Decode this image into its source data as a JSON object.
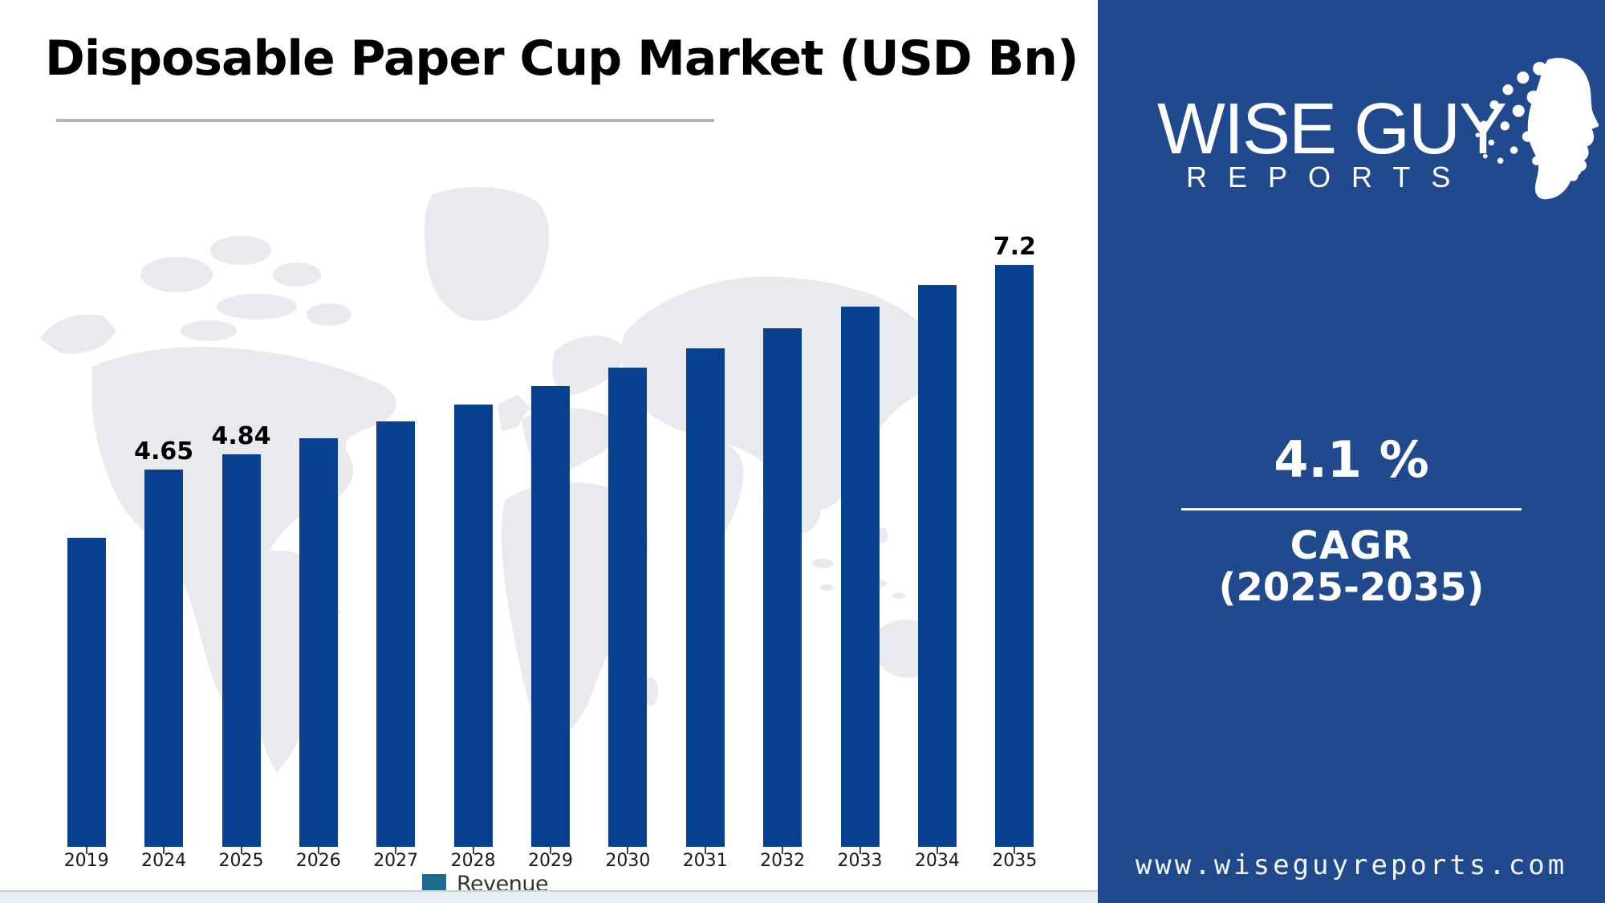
{
  "title": "Disposable Paper Cup Market (USD Bn)",
  "chart_data": {
    "type": "bar",
    "title": "Disposable Paper Cup Market (USD Bn)",
    "categories": [
      "2019",
      "2024",
      "2025",
      "2026",
      "2027",
      "2028",
      "2029",
      "2030",
      "2031",
      "2032",
      "2033",
      "2034",
      "2035"
    ],
    "series": [
      {
        "name": "Revenue",
        "values": [
          3.8,
          4.65,
          4.84,
          5.04,
          5.25,
          5.46,
          5.69,
          5.92,
          6.16,
          6.41,
          6.68,
          6.95,
          7.2
        ]
      }
    ],
    "value_labels": {
      "2024": "4.65",
      "2025": "4.84",
      "2035": "7.2"
    },
    "legend": {
      "position": "bottom",
      "entries": [
        "Revenue"
      ]
    },
    "grid": false,
    "xlabel": "",
    "ylabel": "",
    "bar_color": "#07418f",
    "legend_swatch_color": "#1d6b8e",
    "background_map_color": "#e8eaee"
  },
  "panel": {
    "background_color": "#214a8e",
    "logo_line1": "WISE GUY",
    "logo_line2": "REPORTS",
    "cagr_value": "4.1 %",
    "cagr_label": "CAGR",
    "cagr_period": "(2025-2035)",
    "website": "www.wiseguyreports.com"
  }
}
